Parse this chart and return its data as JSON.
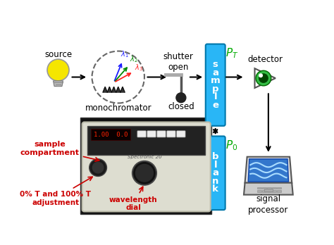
{
  "bg_color": "#ffffff",
  "source_label": "source",
  "monochromator_label": "monochromator",
  "shutter_label_open": "shutter\nopen",
  "shutter_label_closed": "closed",
  "sample_label": "s\na\nm\np\nl\ne",
  "blank_label": "b\nl\na\nn\nk",
  "PT_label": "$P_T$",
  "P0_label": "$P_0$",
  "detector_label": "detector",
  "signal_processor_label": "signal\nprocessor",
  "sample_compartment_label": "sample\ncompartment",
  "zero_hundred_label": "0% T and 100% T\nadjustment",
  "wavelength_dial_label": "wavelength\ndial",
  "lambda1_color": "#1a1aff",
  "lambda2_color": "#008800",
  "lambda3_color": "#ff2222",
  "arrow_color": "#000000",
  "tube_color": "#29b6f6",
  "annotation_color": "#cc0000",
  "pt_color": "#00aa00",
  "p0_color": "#00aa00"
}
